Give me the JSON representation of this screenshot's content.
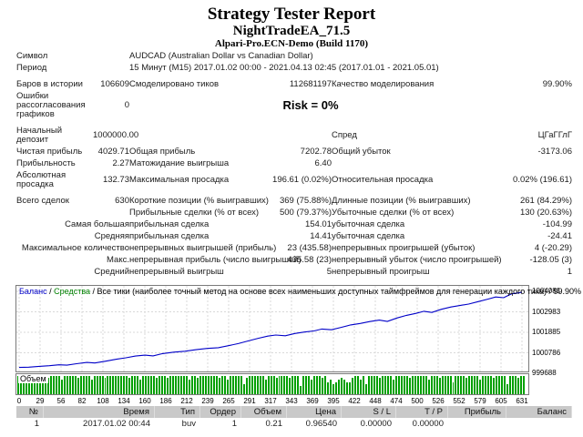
{
  "report": {
    "title": "Strategy Tester Report",
    "ea_name": "NightTradeEA_71.5",
    "server": "Alpari-Pro.ECN-Demo (Build 1170)"
  },
  "stats": {
    "rows": [
      {
        "cells": [
          {
            "c": 1,
            "s": 2,
            "a": "l",
            "t": "Символ"
          },
          {
            "c": 3,
            "s": 4,
            "a": "l",
            "t": "AUDCAD (Australian Dollar vs Canadian Dollar)"
          }
        ]
      },
      {
        "cells": [
          {
            "c": 1,
            "s": 2,
            "a": "l",
            "t": "Период"
          },
          {
            "c": 3,
            "s": 4,
            "a": "l",
            "t": "15 Минут (M15) 2017.01.02 00:00 - 2021.04.13 02:45 (2017.01.01 - 2021.05.01)"
          }
        ]
      },
      {
        "gap": true
      },
      {
        "cells": [
          {
            "c": 1,
            "a": "l",
            "t": "Баров в истории"
          },
          {
            "c": 2,
            "a": "r",
            "t": "106609"
          },
          {
            "c": 3,
            "a": "l",
            "t": "Смоделировано тиков"
          },
          {
            "c": 4,
            "a": "r",
            "t": "112681197"
          },
          {
            "c": 5,
            "a": "l",
            "t": "Качество моделирования"
          },
          {
            "c": 6,
            "a": "r",
            "t": "99.90%"
          }
        ]
      },
      {
        "cells": [
          {
            "c": 1,
            "a": "l",
            "wrap": true,
            "t": "Ошибки рассогласования графиков"
          },
          {
            "c": 2,
            "a": "r",
            "t": "0"
          },
          {
            "c": 3,
            "s": 3,
            "a": "c",
            "cls": "risk",
            "t": "Risk = 0%"
          }
        ]
      },
      {
        "gap": true
      },
      {
        "cells": [
          {
            "c": 1,
            "a": "l",
            "wrap": true,
            "t": "Начальный депозит"
          },
          {
            "c": 2,
            "a": "r",
            "t": "1000000.00"
          },
          {
            "c": 5,
            "a": "l",
            "t": "Спред"
          },
          {
            "c": 6,
            "a": "r",
            "t": "ЦГаГ­ГлГ"
          }
        ]
      },
      {
        "cells": [
          {
            "c": 1,
            "a": "l",
            "t": "Чистая прибыль"
          },
          {
            "c": 2,
            "a": "r",
            "t": "4029.71"
          },
          {
            "c": 3,
            "a": "l",
            "t": "Общая прибыль"
          },
          {
            "c": 4,
            "a": "r",
            "t": "7202.78"
          },
          {
            "c": 5,
            "a": "l",
            "t": "Общий убыток"
          },
          {
            "c": 6,
            "a": "r",
            "t": "-3173.06"
          }
        ]
      },
      {
        "cells": [
          {
            "c": 1,
            "a": "l",
            "t": "Прибыльность"
          },
          {
            "c": 2,
            "a": "r",
            "t": "2.27"
          },
          {
            "c": 3,
            "a": "l",
            "t": "Матожидание выигрыша"
          },
          {
            "c": 4,
            "a": "r",
            "t": "6.40"
          }
        ]
      },
      {
        "cells": [
          {
            "c": 1,
            "a": "l",
            "wrap": true,
            "t": "Абсолютная просадка"
          },
          {
            "c": 2,
            "a": "r",
            "t": "132.73"
          },
          {
            "c": 3,
            "a": "l",
            "t": "Максимальная просадка"
          },
          {
            "c": 4,
            "a": "r",
            "t": "196.61 (0.02%)"
          },
          {
            "c": 5,
            "a": "l",
            "t": "Относительная просадка"
          },
          {
            "c": 6,
            "a": "r",
            "t": "0.02% (196.61)"
          }
        ]
      },
      {
        "gap": true
      },
      {
        "cells": [
          {
            "c": 1,
            "a": "l",
            "t": "Всего сделок"
          },
          {
            "c": 2,
            "a": "r",
            "t": "630"
          },
          {
            "c": 3,
            "a": "l",
            "t": "Короткие позиции (% выигравших)"
          },
          {
            "c": 4,
            "a": "r",
            "t": "369 (75.88%)"
          },
          {
            "c": 5,
            "a": "l",
            "t": "Длинные позиции (% выигравших)"
          },
          {
            "c": 6,
            "a": "r",
            "t": "261 (84.29%)"
          }
        ]
      },
      {
        "cells": [
          {
            "c": 3,
            "a": "l",
            "t": "Прибыльные сделки (% от всех)"
          },
          {
            "c": 4,
            "a": "r",
            "t": "500 (79.37%)"
          },
          {
            "c": 5,
            "a": "l",
            "t": "Убыточные сделки (% от всех)"
          },
          {
            "c": 6,
            "a": "r",
            "t": "130 (20.63%)"
          }
        ]
      },
      {
        "cells": [
          {
            "c": 1,
            "s": 2,
            "a": "r",
            "t": "Самая большая"
          },
          {
            "c": 3,
            "a": "l",
            "t": "прибыльная сделка"
          },
          {
            "c": 4,
            "a": "r",
            "t": "154.01"
          },
          {
            "c": 5,
            "a": "l",
            "t": "убыточная сделка"
          },
          {
            "c": 6,
            "a": "r",
            "t": "-104.99"
          }
        ]
      },
      {
        "cells": [
          {
            "c": 1,
            "s": 2,
            "a": "r",
            "t": "Средняя"
          },
          {
            "c": 3,
            "a": "l",
            "t": "прибыльная сделка"
          },
          {
            "c": 4,
            "a": "r",
            "t": "14.41"
          },
          {
            "c": 5,
            "a": "l",
            "t": "убыточная сделка"
          },
          {
            "c": 6,
            "a": "r",
            "t": "-24.41"
          }
        ]
      },
      {
        "cells": [
          {
            "c": 1,
            "s": 2,
            "a": "r",
            "t": "Максимальное количество"
          },
          {
            "c": 3,
            "a": "l",
            "t": "непрерывных выигрышей (прибыль)"
          },
          {
            "c": 4,
            "a": "r",
            "t": "23 (435.58)"
          },
          {
            "c": 5,
            "a": "l",
            "t": "непрерывных проигрышей (убыток)"
          },
          {
            "c": 6,
            "a": "r",
            "t": "4 (-20.29)"
          }
        ]
      },
      {
        "cells": [
          {
            "c": 1,
            "s": 2,
            "a": "r",
            "t": "Макс."
          },
          {
            "c": 3,
            "a": "l",
            "t": "непрерывная прибыль (число выигрышей)"
          },
          {
            "c": 4,
            "a": "r",
            "t": "435.58 (23)"
          },
          {
            "c": 5,
            "a": "l",
            "t": "непрерывный убыток (число проигрышей)"
          },
          {
            "c": 6,
            "a": "r",
            "t": "-128.05 (3)"
          }
        ]
      },
      {
        "cells": [
          {
            "c": 1,
            "s": 2,
            "a": "r",
            "t": "Средний"
          },
          {
            "c": 3,
            "a": "l",
            "t": "непрерывный выигрыш"
          },
          {
            "c": 4,
            "a": "r",
            "t": "5"
          },
          {
            "c": 5,
            "a": "l",
            "t": "непрерывный проигрыш"
          },
          {
            "c": 6,
            "a": "r",
            "t": "1"
          }
        ]
      }
    ]
  },
  "chart_data": {
    "type": "line",
    "title": "Баланс / Средства / Все тики (наиболее точный метод на основе всех наименьших доступных таймфреймов для генерации каждого тика) / 99.90%",
    "legend": {
      "balance_label": "Баланс",
      "equity_label": "Средства",
      "sep": " / ",
      "method_text": "Все тики (наиболее точный метод на основе всех наименьших доступных таймфреймов для генерации каждого тика) / 99.90%"
    },
    "xlabel": "",
    "ylabel": "",
    "grid": true,
    "y_ticks": [
      "1004081",
      "1002983",
      "1001885",
      "1000786",
      "999688"
    ],
    "y_top_value": 1004081,
    "y_bottom_value": 999688,
    "x_ticks": [
      0,
      29,
      56,
      82,
      108,
      134,
      160,
      186,
      212,
      239,
      265,
      291,
      317,
      343,
      369,
      395,
      422,
      448,
      474,
      500,
      526,
      552,
      579,
      605,
      631
    ],
    "x_max": 631,
    "series": [
      {
        "name": "Баланс",
        "color": "#0000c8",
        "points": [
          [
            0,
            1000000
          ],
          [
            12,
            1000015
          ],
          [
            25,
            1000060
          ],
          [
            38,
            1000095
          ],
          [
            50,
            1000140
          ],
          [
            60,
            1000120
          ],
          [
            72,
            1000200
          ],
          [
            85,
            1000270
          ],
          [
            95,
            1000240
          ],
          [
            108,
            1000330
          ],
          [
            122,
            1000440
          ],
          [
            134,
            1000520
          ],
          [
            146,
            1000610
          ],
          [
            158,
            1000660
          ],
          [
            168,
            1000620
          ],
          [
            180,
            1000740
          ],
          [
            194,
            1000820
          ],
          [
            208,
            1000870
          ],
          [
            222,
            1000950
          ],
          [
            236,
            1001020
          ],
          [
            250,
            1001060
          ],
          [
            262,
            1001160
          ],
          [
            275,
            1001280
          ],
          [
            290,
            1001450
          ],
          [
            300,
            1001560
          ],
          [
            312,
            1001680
          ],
          [
            322,
            1001740
          ],
          [
            334,
            1001700
          ],
          [
            346,
            1001820
          ],
          [
            358,
            1001900
          ],
          [
            370,
            1001960
          ],
          [
            380,
            1002060
          ],
          [
            392,
            1002020
          ],
          [
            404,
            1002150
          ],
          [
            416,
            1002280
          ],
          [
            428,
            1002360
          ],
          [
            440,
            1002460
          ],
          [
            452,
            1002540
          ],
          [
            462,
            1002470
          ],
          [
            474,
            1002650
          ],
          [
            486,
            1002790
          ],
          [
            498,
            1002900
          ],
          [
            508,
            1003010
          ],
          [
            518,
            1002950
          ],
          [
            530,
            1003120
          ],
          [
            542,
            1003240
          ],
          [
            554,
            1003330
          ],
          [
            564,
            1003400
          ],
          [
            576,
            1003530
          ],
          [
            588,
            1003660
          ],
          [
            598,
            1003780
          ],
          [
            608,
            1003740
          ],
          [
            618,
            1003950
          ],
          [
            625,
            1003990
          ],
          [
            631,
            1004030
          ]
        ]
      }
    ],
    "volume": {
      "label": "Объем",
      "bar_color": "#00a000",
      "heights": "9999899979989999799999899997999989999999989997999998999899999997998999999989979999958999999799989999899949997999896756787668997959999899997999998999999799989999699998999979999899995999899"
    }
  },
  "deals": {
    "columns": [
      "№",
      "Время",
      "Тип",
      "Ордер",
      "Объем",
      "Цена",
      "S / L",
      "T / P",
      "Прибыль",
      "Баланс"
    ],
    "rows": [
      [
        "1",
        "2017.01.02 00:44",
        "buy",
        "1",
        "0.21",
        "0.96540",
        "0.00000",
        "0.00000",
        "",
        ""
      ]
    ]
  }
}
